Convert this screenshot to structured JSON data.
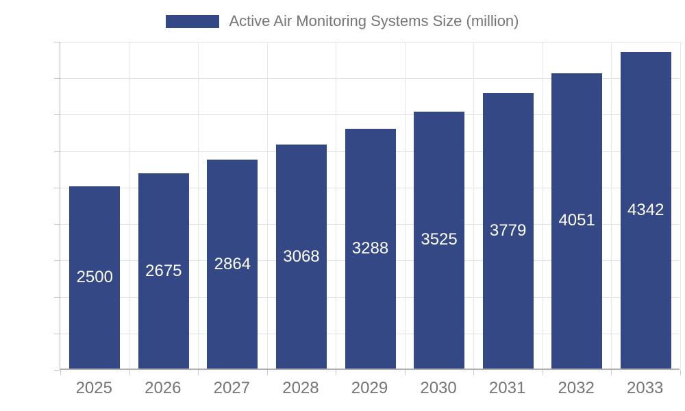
{
  "legend": {
    "label": "Active Air Monitoring Systems Size (million)"
  },
  "chart_data": {
    "type": "bar",
    "title": "Active Air Monitoring Systems Size (million)",
    "categories": [
      "2025",
      "2026",
      "2027",
      "2028",
      "2029",
      "2030",
      "2031",
      "2032",
      "2033"
    ],
    "values": [
      2500,
      2675,
      2864,
      3068,
      3288,
      3525,
      3779,
      4051,
      4342
    ],
    "xlabel": "",
    "ylabel": "",
    "ylim": [
      0,
      4500
    ],
    "ytick_step": 500,
    "yticks": [
      0,
      500,
      1000,
      1500,
      2000,
      2500,
      3000,
      3500,
      4000,
      4500
    ],
    "grid": true,
    "legend_position": "top",
    "value_labels": "inside-center"
  },
  "colors": {
    "bar": "#344885",
    "value_label": "#ffffff",
    "axis_text": "#757575",
    "gridline_h": "#e0e0e0",
    "gridline_v": "#e6e6e6",
    "background": "#ffffff"
  }
}
